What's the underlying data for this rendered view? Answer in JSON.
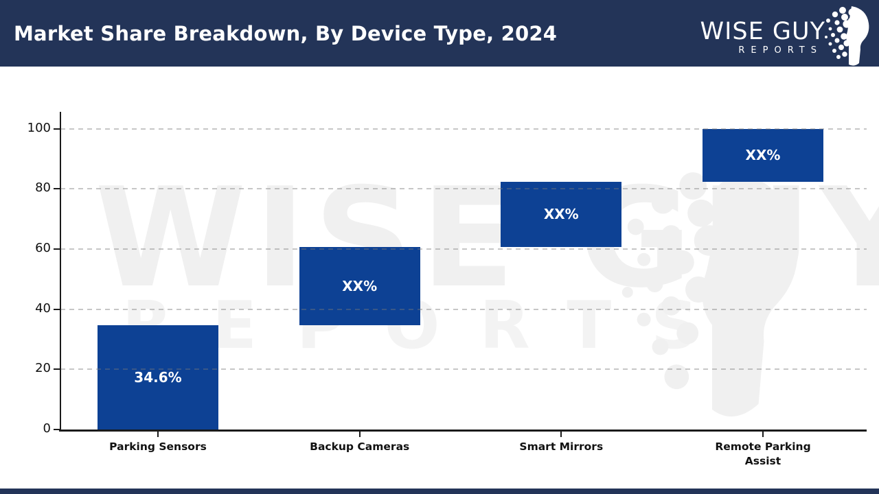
{
  "header": {
    "title": "Market Share Breakdown, By Device Type, 2024",
    "bg_color": "#233458",
    "logo": {
      "line1": "WISE GUY",
      "line2": "REPORTS"
    }
  },
  "watermark": {
    "line1": "WISE GUY",
    "line2": "REPORTS"
  },
  "chart_data": {
    "type": "bar",
    "subtype": "waterfall",
    "title": "Market Share Breakdown, By Device Type, 2024",
    "categories": [
      "Parking Sensors",
      "Backup Cameras",
      "Smart Mirrors",
      "Remote Parking Assist"
    ],
    "segments": [
      {
        "category": "Parking Sensors",
        "label": "34.6%",
        "start": 0,
        "end": 34.6
      },
      {
        "category": "Backup Cameras",
        "label": "XX%",
        "start": 34.6,
        "end": 60.6
      },
      {
        "category": "Smart Mirrors",
        "label": "XX%",
        "start": 60.6,
        "end": 82.4
      },
      {
        "category": "Remote Parking Assist",
        "label": "XX%",
        "start": 82.4,
        "end": 100
      }
    ],
    "bar_labels": [
      "34.6%",
      "XX%",
      "XX%",
      "XX%"
    ],
    "yticks": [
      0,
      20,
      40,
      60,
      80,
      100
    ],
    "ylim": [
      0,
      105
    ],
    "xlabel": "",
    "ylabel": "",
    "bar_color": "#0d4194",
    "grid": "horizontal-dashed",
    "gridline_color": "#c9c9c9",
    "legend": "none"
  }
}
